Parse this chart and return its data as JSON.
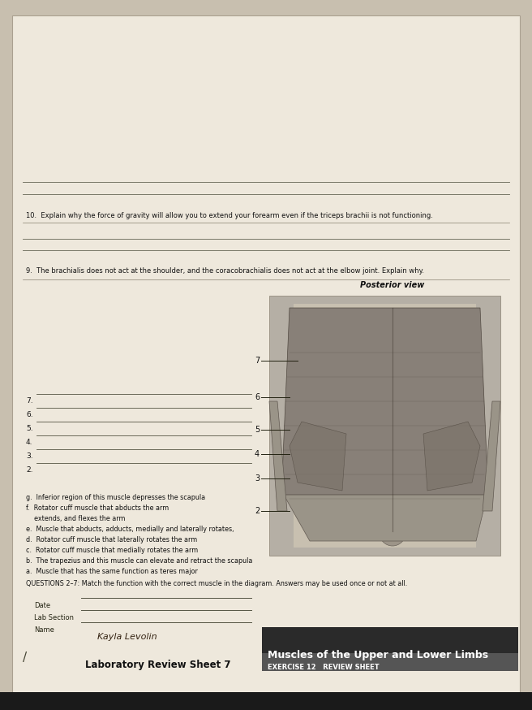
{
  "bg_color": "#c8bfaf",
  "paper_color": "#eee8dc",
  "paper_color2": "#e8e0d0",
  "title_left": "Laboratory Review Sheet 7",
  "header_box_color": "#2a2a2a",
  "header_box_color2": "#4a4a4a",
  "header_small": "EXERCISE 12   REVIEW SHEET",
  "header_large": "Muscles of the Upper and Lower Limbs",
  "name_label": "Name",
  "name_value": "Kayla Levolin",
  "lab_section_label": "Lab Section",
  "date_label": "Date",
  "questions_header": "QUESTIONS 2–7: Match the function with the correct muscle in the diagram. Answers may be used once or not at all.",
  "options": [
    "a.  Muscle that has the same function as teres major",
    "b.  The trapezius and this muscle can elevate and retract the scapula",
    "c.  Rotator cuff muscle that medially rotates the arm",
    "d.  Rotator cuff muscle that laterally rotates the arm",
    "e.  Muscle that abducts, adducts, medially and laterally rotates,",
    "    extends, and flexes the arm",
    "f.  Rotator cuff muscle that abducts the arm",
    "g.  Inferior region of this muscle depresses the scapula"
  ],
  "answer_labels": [
    "2.",
    "3.",
    "4.",
    "5.",
    "6.",
    "7."
  ],
  "diagram_labels": [
    "2",
    "3",
    "4",
    "5",
    "6",
    "7"
  ],
  "posterior_view": "Posterior view",
  "q9_text": "9.  The brachialis does not act at the shoulder, and the coracobrachialis does not act at the elbow joint. Explain why.",
  "q10_text": "10.  Explain why the force of gravity will allow you to extend your forearm even if the triceps brachii is not functioning.",
  "slash_mark": "/",
  "fig_w": 6.56,
  "fig_h": 8.74,
  "dpi": 100
}
